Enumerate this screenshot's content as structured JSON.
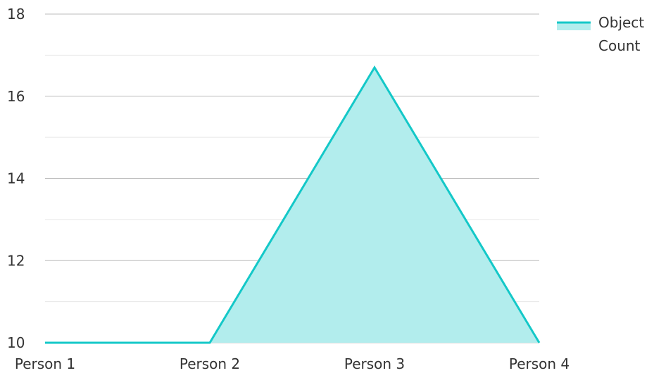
{
  "chart_data": {
    "type": "area",
    "categories": [
      "Person 1",
      "Person 2",
      "Person 3",
      "Person 4"
    ],
    "series": [
      {
        "name": "Object Count",
        "values": [
          10,
          10,
          16.7,
          10
        ]
      }
    ],
    "ylim": [
      10,
      18
    ],
    "yticks": [
      "10",
      "12",
      "14",
      "16",
      "18"
    ],
    "grid": true,
    "legend": {
      "position": "top-right",
      "lines": [
        "Object",
        "Count"
      ]
    },
    "colors": {
      "line": "#14c8c8",
      "fill": "#b2eded",
      "grid_major": "#bdbdbd",
      "grid_minor": "#e6e6e6",
      "text": "#333333"
    }
  }
}
